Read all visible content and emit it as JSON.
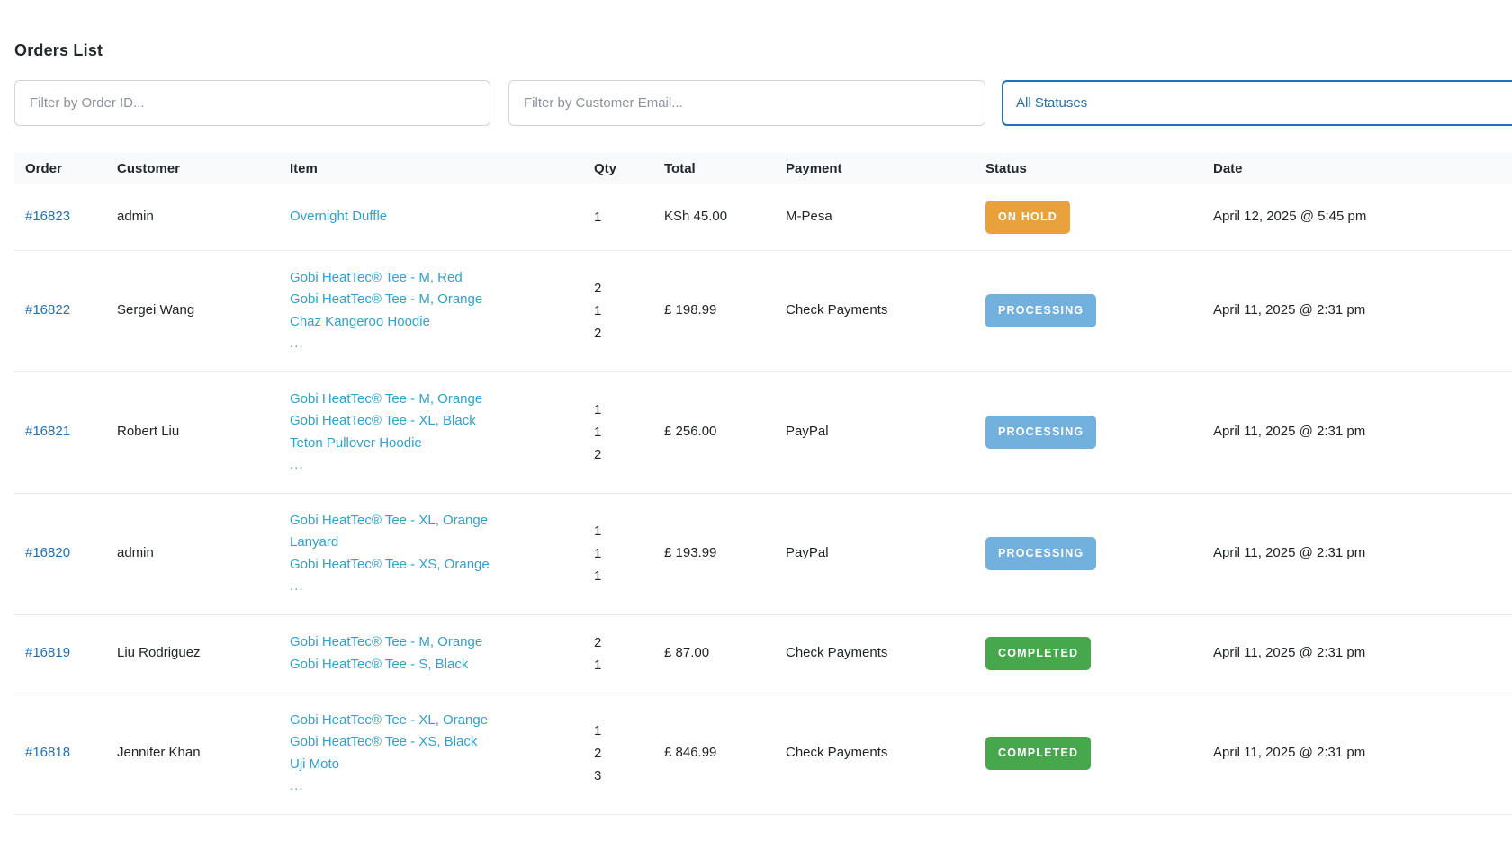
{
  "page": {
    "title": "Orders List"
  },
  "filters": {
    "order_id_placeholder": "Filter by Order ID...",
    "email_placeholder": "Filter by Customer Email...",
    "status_selected": "All Statuses"
  },
  "table": {
    "columns": {
      "order": "Order",
      "customer": "Customer",
      "item": "Item",
      "qty": "Qty",
      "total": "Total",
      "payment": "Payment",
      "status": "Status",
      "date": "Date"
    },
    "rows": [
      {
        "order_id": "#16823",
        "customer": "admin",
        "items": [
          "Overnight Duffle"
        ],
        "ellipsis": "",
        "qtys": [
          "1"
        ],
        "total": "KSh 45.00",
        "payment": "M-Pesa",
        "status": "ON HOLD",
        "status_type": "on-hold",
        "date": "April 12, 2025 @ 5:45 pm"
      },
      {
        "order_id": "#16822",
        "customer": "Sergei Wang",
        "items": [
          "Gobi HeatTec® Tee - M, Red",
          "Gobi HeatTec® Tee - M, Orange",
          "Chaz Kangeroo Hoodie"
        ],
        "ellipsis": "...",
        "qtys": [
          "2",
          "1",
          "2"
        ],
        "total": "£ 198.99",
        "payment": "Check Payments",
        "status": "PROCESSING",
        "status_type": "processing",
        "date": "April 11, 2025 @ 2:31 pm"
      },
      {
        "order_id": "#16821",
        "customer": "Robert Liu",
        "items": [
          "Gobi HeatTec® Tee - M, Orange",
          "Gobi HeatTec® Tee - XL, Black",
          "Teton Pullover Hoodie"
        ],
        "ellipsis": "...",
        "qtys": [
          "1",
          "1",
          "2"
        ],
        "total": "£ 256.00",
        "payment": "PayPal",
        "status": "PROCESSING",
        "status_type": "processing",
        "date": "April 11, 2025 @ 2:31 pm"
      },
      {
        "order_id": "#16820",
        "customer": "admin",
        "items": [
          "Gobi HeatTec® Tee - XL, Orange",
          "Lanyard",
          "Gobi HeatTec® Tee - XS, Orange"
        ],
        "ellipsis": "...",
        "qtys": [
          "1",
          "1",
          "1"
        ],
        "total": "£ 193.99",
        "payment": "PayPal",
        "status": "PROCESSING",
        "status_type": "processing",
        "date": "April 11, 2025 @ 2:31 pm"
      },
      {
        "order_id": "#16819",
        "customer": "Liu Rodriguez",
        "items": [
          "Gobi HeatTec® Tee - M, Orange",
          "Gobi HeatTec® Tee - S, Black"
        ],
        "ellipsis": "",
        "qtys": [
          "2",
          "1"
        ],
        "total": "£ 87.00",
        "payment": "Check Payments",
        "status": "COMPLETED",
        "status_type": "completed",
        "date": "April 11, 2025 @ 2:31 pm"
      },
      {
        "order_id": "#16818",
        "customer": "Jennifer Khan",
        "items": [
          "Gobi HeatTec® Tee - XL, Orange",
          "Gobi HeatTec® Tee - XS, Black",
          "Uji Moto"
        ],
        "ellipsis": "...",
        "qtys": [
          "1",
          "2",
          "3"
        ],
        "total": "£ 846.99",
        "payment": "Check Payments",
        "status": "COMPLETED",
        "status_type": "completed",
        "date": "April 11, 2025 @ 2:31 pm"
      }
    ]
  },
  "colors": {
    "accent_blue": "#2271b1",
    "item_link_blue": "#2ea2cc",
    "badge_on_hold": "#e9a23b",
    "badge_processing": "#72b0dd",
    "badge_completed": "#47a74c",
    "header_bg": "#f8f9fa",
    "row_divider": "#e8eaed",
    "text_dark": "#23282d"
  }
}
